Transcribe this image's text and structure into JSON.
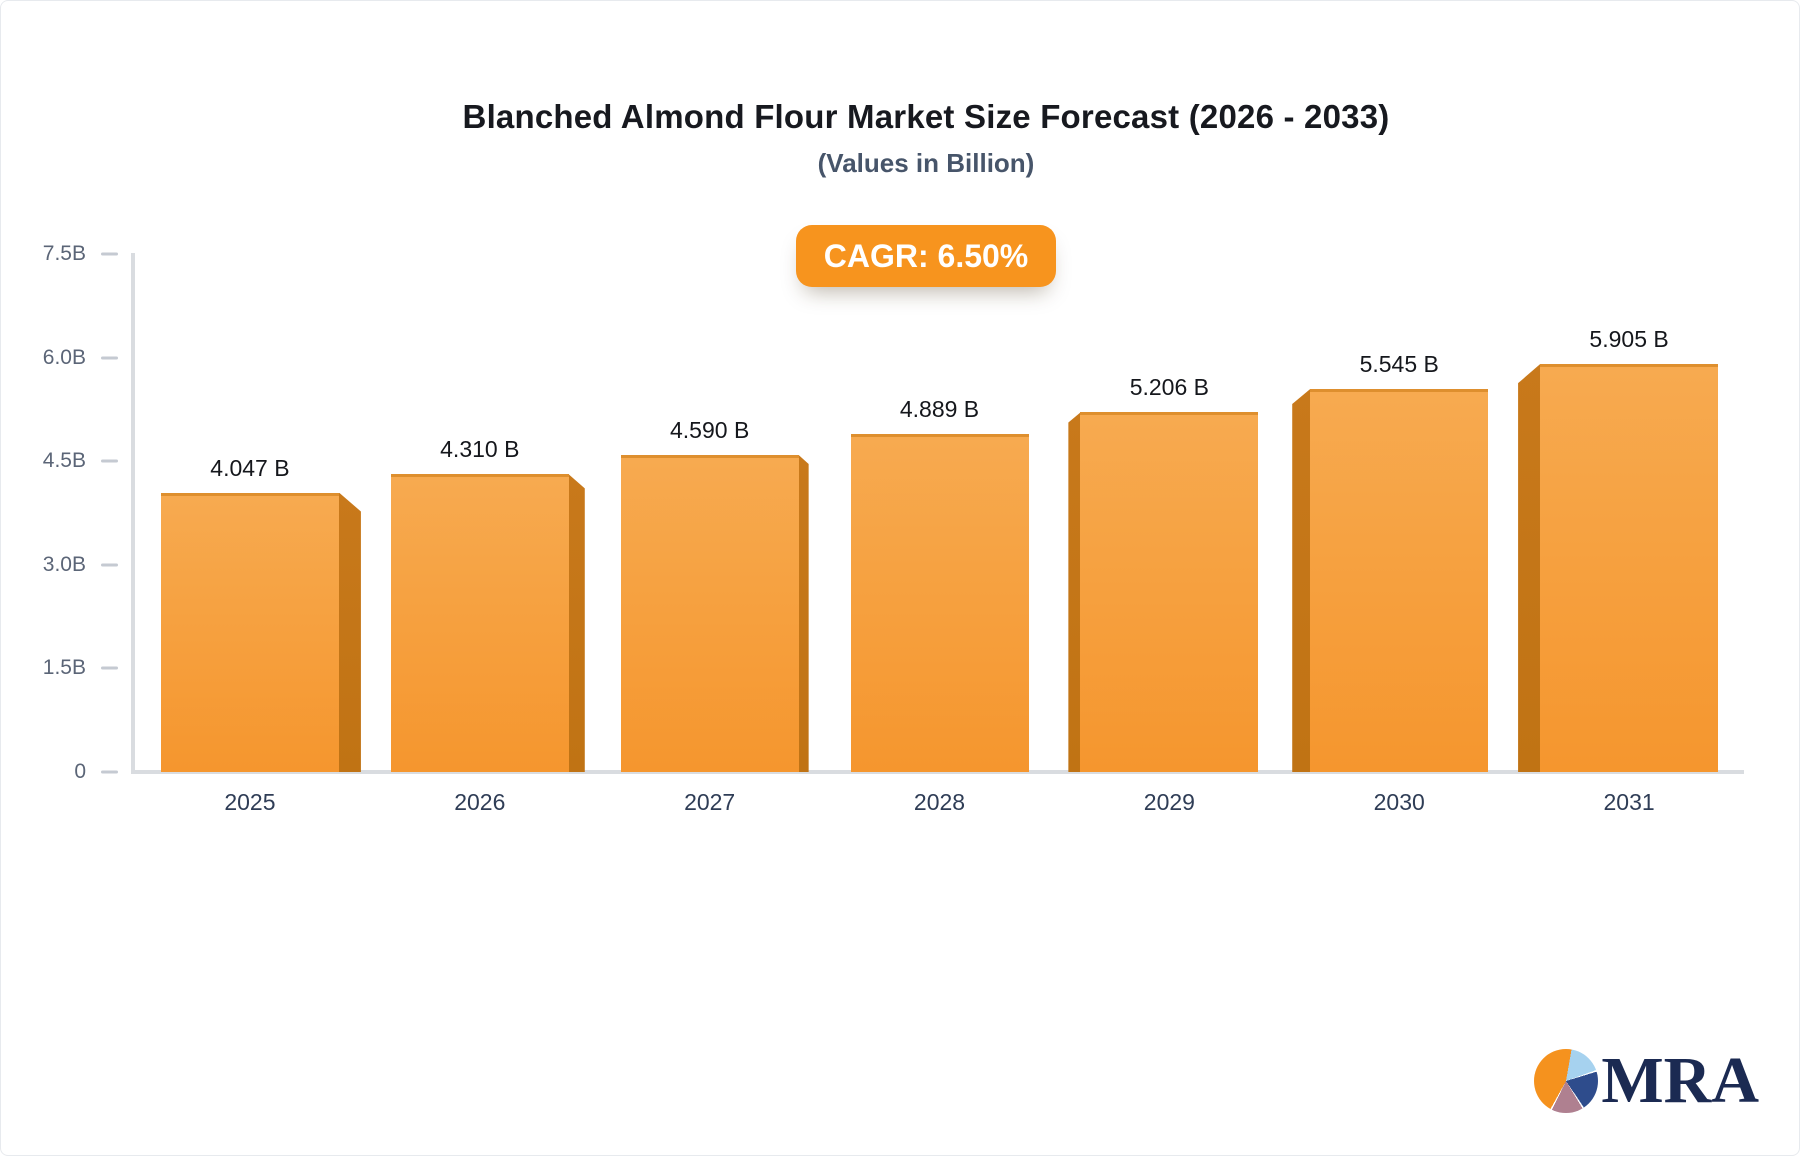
{
  "header": {
    "title": "Blanched Almond Flour Market Size Forecast (2026 - 2033)",
    "subtitle": "(Values in Billion)",
    "cagr_badge": "CAGR: 6.50%"
  },
  "chart_data": {
    "type": "bar",
    "title": "Blanched Almond Flour Market Size Forecast (2026 - 2033)",
    "subtitle": "(Values in Billion)",
    "annotation": "CAGR: 6.50%",
    "categories": [
      "2025",
      "2026",
      "2027",
      "2028",
      "2029",
      "2030",
      "2031"
    ],
    "values": [
      4.047,
      4.31,
      4.59,
      4.889,
      5.206,
      5.545,
      5.905
    ],
    "value_labels": [
      "4.047 B",
      "4.310 B",
      "4.590 B",
      "4.889 B",
      "5.206 B",
      "5.545 B",
      "5.905 B"
    ],
    "xlabel": "",
    "ylabel": "",
    "ylim": [
      0,
      7.5
    ],
    "y_ticks": [
      "7.5B",
      "6.0B",
      "4.5B",
      "3.0B",
      "1.5B",
      "0"
    ],
    "y_tick_values": [
      7.5,
      6.0,
      4.5,
      3.0,
      1.5,
      0
    ],
    "grid": false,
    "legend_position": "none",
    "bar_color_top": "#F7AA50",
    "bar_color_bottom": "#F5962E",
    "bar_side_color": "#C8791B",
    "badge_color": "#F7941E"
  },
  "branding": {
    "logo_text": "MRA",
    "logo_icon": "pie-chart-icon",
    "logo_pie_colors": [
      "#F5921E",
      "#A6D2EF",
      "#2E4C8C",
      "#AF8090"
    ]
  }
}
